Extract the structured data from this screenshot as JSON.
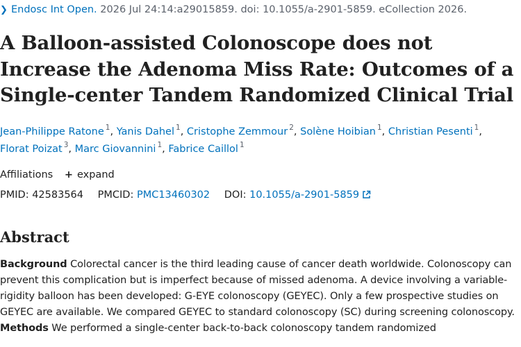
{
  "citation": {
    "journal": "Endosc Int Open.",
    "details": " 2026 Jul 24:14:a29015859. doi: 10.1055/a-2901-5859. eCollection 2026."
  },
  "title": "A Balloon-assisted Colonoscope does not Increase the Adenoma Miss Rate: Outcomes of a Single-center Tandem Randomized Clinical Trial",
  "authors": [
    {
      "name": "Jean-Philippe Ratone",
      "aff": "1"
    },
    {
      "name": "Yanis Dahel",
      "aff": "1"
    },
    {
      "name": "Cristophe Zemmour",
      "aff": "2"
    },
    {
      "name": "Solène Hoibian",
      "aff": "1"
    },
    {
      "name": "Christian Pesenti",
      "aff": "1"
    },
    {
      "name": "Florat Poizat",
      "aff": "3"
    },
    {
      "name": "Marc Giovannini",
      "aff": "1"
    },
    {
      "name": "Fabrice Caillol",
      "aff": "1"
    }
  ],
  "affiliations": {
    "label": "Affiliations",
    "expand": "expand"
  },
  "ids": {
    "pmid_label": "PMID:",
    "pmid": "42583564",
    "pmcid_label": "PMCID:",
    "pmcid": "PMC13460302",
    "doi_label": "DOI:",
    "doi": "10.1055/a-2901-5859"
  },
  "abstract": {
    "heading": "Abstract",
    "background_label": "Background",
    "background_text": " Colorectal cancer is the third leading cause of cancer death worldwide. Colonoscopy can prevent this complication but is imperfect because of missed adenoma. A device involving a variable-rigidity balloon has been developed: G-EYE colonoscopy (GEYEC). Only a few prospective studies on GEYEC are available. We compared GEYEC to standard colonoscopy (SC) during screening colonoscopy. ",
    "methods_label": "Methods",
    "methods_text": " We performed a single-center back-to-back colonoscopy tandem randomized"
  },
  "colors": {
    "link": "#0071bc",
    "text": "#212121",
    "muted": "#5b616b"
  },
  "icons": [
    "chevron-right-icon",
    "plus-icon",
    "external-link-icon"
  ]
}
